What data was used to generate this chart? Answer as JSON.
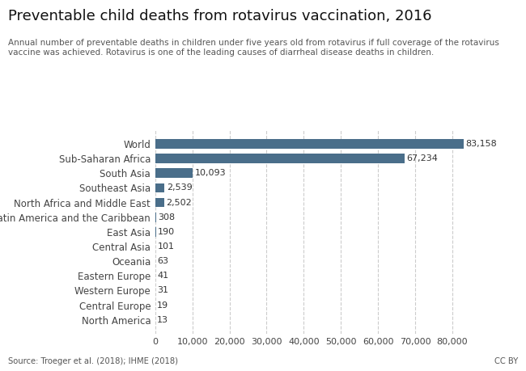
{
  "title": "Preventable child deaths from rotavirus vaccination, 2016",
  "subtitle": "Annual number of preventable deaths in children under five years old from rotavirus if full coverage of the rotavirus\nvaccine was achieved. Rotavirus is one of the leading causes of diarrheal disease deaths in children.",
  "source": "Source: Troeger et al. (2018); IHME (2018)",
  "license": "CC BY",
  "categories": [
    "North America",
    "Central Europe",
    "Western Europe",
    "Eastern Europe",
    "Oceania",
    "Central Asia",
    "East Asia",
    "Latin America and the Caribbean",
    "North Africa and Middle East",
    "Southeast Asia",
    "South Asia",
    "Sub-Saharan Africa",
    "World"
  ],
  "values": [
    13,
    19,
    31,
    41,
    63,
    101,
    190,
    308,
    2502,
    2539,
    10093,
    67234,
    83158
  ],
  "bar_color": "#4a6e8a",
  "background_color": "#ffffff",
  "xlim": [
    0,
    85000
  ],
  "xticks": [
    0,
    10000,
    20000,
    30000,
    40000,
    50000,
    60000,
    70000,
    80000
  ],
  "xticklabels": [
    "0",
    "10,000",
    "20,000",
    "30,000",
    "40,000",
    "50,000",
    "60,000",
    "70,000",
    "80,000"
  ],
  "grid_color": "#cccccc",
  "title_fontsize": 13,
  "subtitle_fontsize": 7.5,
  "label_fontsize": 8.5,
  "tick_fontsize": 8,
  "value_fontsize": 8,
  "owid_box_bg": "#c0392b",
  "owid_box_fg": "#ffffff"
}
